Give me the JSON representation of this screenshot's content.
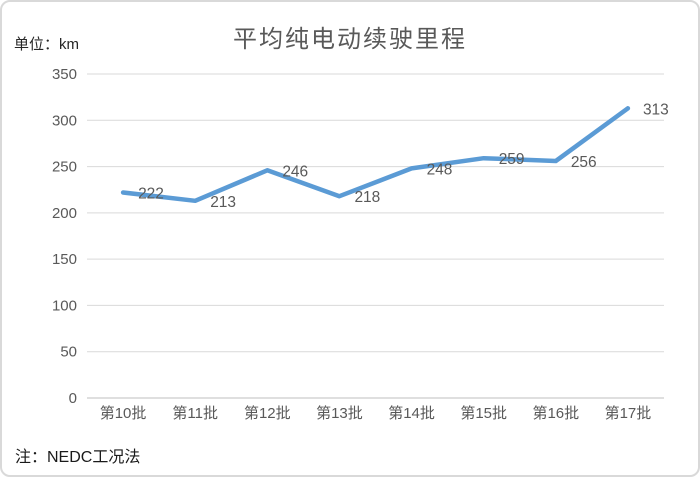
{
  "page": {
    "title": "平均纯电动续驶里程",
    "unit_label": "单位：km",
    "note": "注：NEDC工况法"
  },
  "chart_data": {
    "type": "line",
    "title": "平均纯电动续驶里程",
    "categories": [
      "第10批",
      "第11批",
      "第12批",
      "第13批",
      "第14批",
      "第15批",
      "第16批",
      "第17批"
    ],
    "series": [
      {
        "name": "平均纯电动续驶里程",
        "values": [
          222,
          213,
          246,
          218,
          248,
          259,
          256,
          313
        ]
      }
    ],
    "data_labels": [
      222,
      213,
      246,
      218,
      248,
      259,
      256,
      313
    ],
    "xlabel": "",
    "ylabel": "单位：km",
    "ylim": [
      0,
      350
    ],
    "yticks": [
      0,
      50,
      100,
      150,
      200,
      250,
      300,
      350
    ],
    "grid": true,
    "legend_position": "none",
    "note": "注：NEDC工况法",
    "colors": {
      "line": "#5b9bd5",
      "gridline": "#d9d9d9",
      "axis_line": "#bfbfbf",
      "tick_label": "#595959",
      "data_label": "#595959",
      "title": "#595959",
      "text": "#262626"
    }
  }
}
